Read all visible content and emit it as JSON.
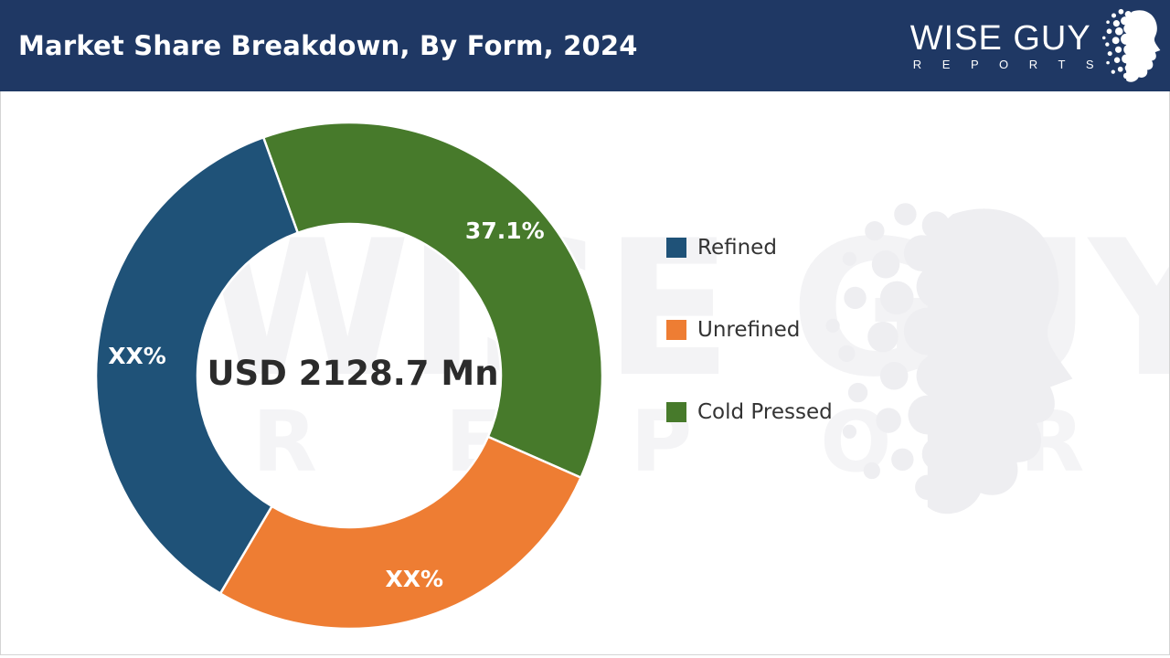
{
  "header": {
    "title": "Market Share Breakdown, By Form, 2024",
    "bg_color": "#1f3864",
    "logo": {
      "line1": "WISE GUY",
      "line2": "R E P O R T S"
    }
  },
  "watermark": {
    "line1": "WISE GUY",
    "line2": "R E P O R T S"
  },
  "chart_data": {
    "type": "pie",
    "subtype": "donut",
    "title": "Market Share Breakdown, By Form, 2024",
    "center_label": "USD 2128.7 Mn",
    "start_angle_deg": -19.8,
    "direction": "clockwise",
    "legend_position": "right",
    "segments": [
      {
        "label": "Cold Pressed",
        "value": 37.1,
        "display": "37.1%",
        "color": "#477a2b"
      },
      {
        "label": "Unrefined",
        "value": 26.9,
        "display": "XX%",
        "color": "#ee7d33"
      },
      {
        "label": "Refined",
        "value": 36.0,
        "display": "XX%",
        "color": "#1f5278"
      }
    ],
    "legend": [
      {
        "label": "Refined",
        "color": "#1f5278"
      },
      {
        "label": "Unrefined",
        "color": "#ee7d33"
      },
      {
        "label": "Cold Pressed",
        "color": "#477a2b"
      }
    ]
  }
}
